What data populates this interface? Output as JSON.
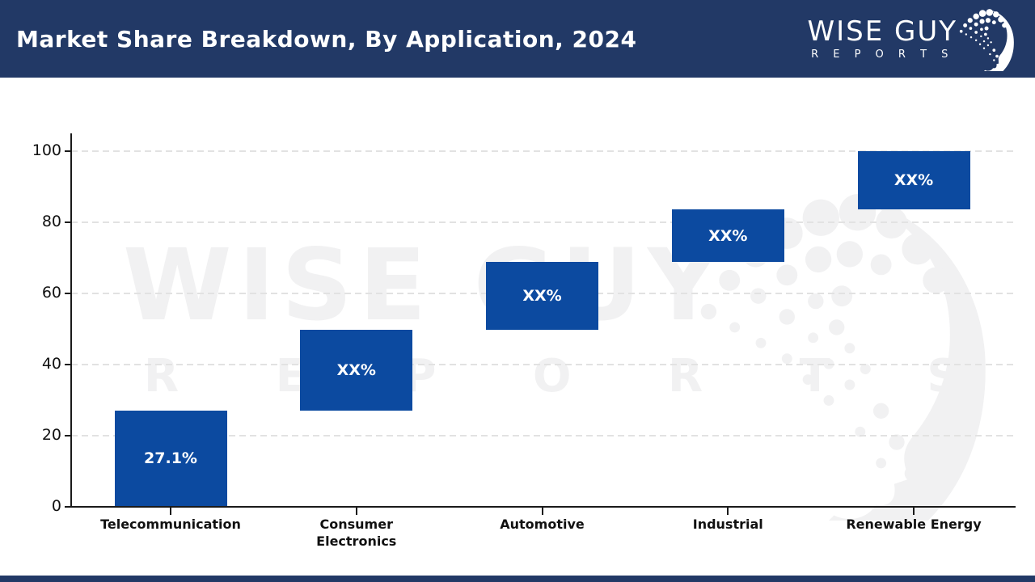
{
  "header": {
    "title": "Market Share Breakdown, By Application, 2024",
    "logo": {
      "line1": "WISE GUY",
      "line2": "R E P O R T S"
    }
  },
  "watermark": {
    "line1": "WISE GUY",
    "line2": "R E P O R T S"
  },
  "colors": {
    "header_bg": "#223966",
    "footer_bg": "#223966",
    "bar": "#0c4aa0",
    "bar_label": "#ffffff",
    "grid": "#e2e2e2",
    "axis": "#1a1a1a",
    "tick_text": "#111111",
    "watermark": "#f1f1f2"
  },
  "chart_data": {
    "type": "bar",
    "subtype": "waterfall",
    "title": "Market Share Breakdown, By Application, 2024",
    "categories": [
      "Telecommunication",
      "Consumer\nElectronics",
      "Automotive",
      "Industrial",
      "Renewable Energy"
    ],
    "series": [
      {
        "name": "Market Share",
        "segments": [
          {
            "category": "Telecommunication",
            "from": 0,
            "to": 27.1,
            "label": "27.1%"
          },
          {
            "category": "Consumer Electronics",
            "from": 27.1,
            "to": 49.8,
            "label": "XX%"
          },
          {
            "category": "Automotive",
            "from": 49.8,
            "to": 68.8,
            "label": "XX%"
          },
          {
            "category": "Industrial",
            "from": 68.8,
            "to": 83.6,
            "label": "XX%"
          },
          {
            "category": "Renewable Energy",
            "from": 83.6,
            "to": 100,
            "label": "XX%"
          }
        ]
      }
    ],
    "ylim": [
      0,
      105
    ],
    "yticks": [
      0,
      20,
      40,
      60,
      80,
      100
    ],
    "grid": "horizontal-dashed",
    "legend": "none"
  }
}
